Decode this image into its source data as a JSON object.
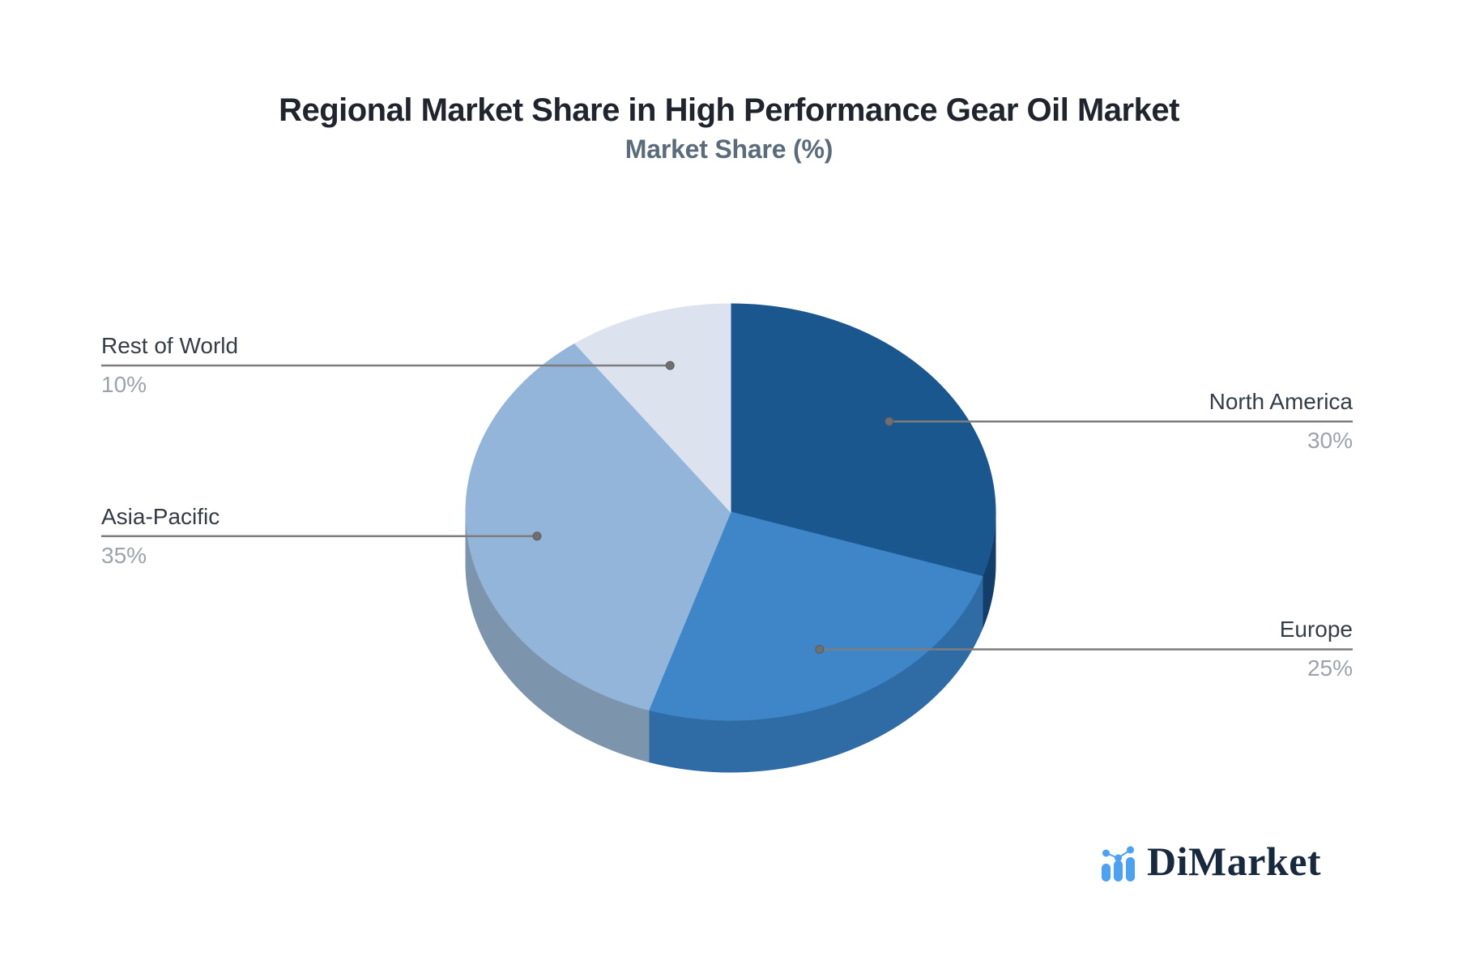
{
  "header": {
    "title": "Regional Market Share in High Performance Gear Oil Market",
    "subtitle": "Market Share (%)"
  },
  "chart_data": {
    "type": "pie",
    "title": "Regional Market Share in High Performance Gear Oil Market",
    "subtitle": "Market Share (%)",
    "unit": "%",
    "style": "3d-pie",
    "start_angle_deg": 0,
    "direction": "clockwise",
    "legend_position": "callout-labels",
    "slices": [
      {
        "label": "North America",
        "value": 30,
        "display": "30%",
        "color": "#1B578F",
        "side_color": "#123E69"
      },
      {
        "label": "Europe",
        "value": 25,
        "display": "25%",
        "color": "#3E86C8",
        "side_color": "#2F6CA6"
      },
      {
        "label": "Asia-Pacific",
        "value": 35,
        "display": "35%",
        "color": "#92B5D9",
        "side_color": "#7D95AC"
      },
      {
        "label": "Rest of World",
        "value": 10,
        "display": "10%",
        "color": "#DCE3EE",
        "side_color": "#BAC6D8"
      }
    ],
    "colors": {
      "label_name": "#353d47",
      "label_value": "#9ba3ab",
      "callout_line": "#7d7d7d",
      "title": "#20242d",
      "subtitle": "#5a6b7c"
    }
  },
  "logo": {
    "text": "DiMarket",
    "icon": "bar-chart-trend-icon",
    "icon_color": "#4BA1F2",
    "text_color": "#17293f"
  }
}
